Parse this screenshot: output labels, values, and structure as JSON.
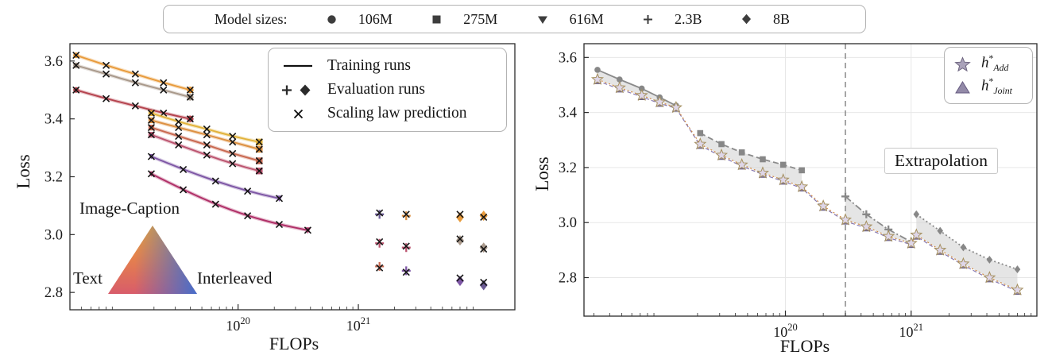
{
  "page": {
    "background": "#ffffff"
  },
  "model_size_legend": {
    "label": "Model sizes:",
    "items": [
      {
        "icon": "circle-marker",
        "label": "106M"
      },
      {
        "icon": "square-marker",
        "label": "275M"
      },
      {
        "icon": "triangle-down-marker",
        "label": "616M"
      },
      {
        "icon": "plus-marker",
        "label": "2.3B"
      },
      {
        "icon": "diamond-marker",
        "label": "8B"
      }
    ]
  },
  "chart_data": [
    {
      "type": "line",
      "panel": "left",
      "title": "",
      "xlabel": "FLOPs",
      "ylabel": "Loss",
      "xscale": "log",
      "xlim": [
        4e+18,
        2e+22
      ],
      "ylim": [
        2.74,
        3.66
      ],
      "yticks": [
        2.8,
        3.0,
        3.2,
        3.4,
        3.6
      ],
      "xticks": [
        1e+20,
        1e+21
      ],
      "xtick_labels": [
        "10²⁰",
        "10²¹"
      ],
      "grid": false,
      "legend": [
        {
          "icon": "line",
          "label": "Training runs"
        },
        {
          "icon": "plus-diamond",
          "label": "Evaluation runs"
        },
        {
          "icon": "x",
          "label": "Scaling law prediction"
        }
      ],
      "annotations": {
        "mixture_triangle": {
          "top_label": "Image-Caption",
          "left_label": "Text",
          "right_label": "Interleaved",
          "colors": {
            "top": "#F0A233",
            "left": "#D85C6A",
            "right": "#3E6FD0"
          }
        }
      },
      "training_runs": [
        {
          "model_size": "106M",
          "color": "#E89B3C",
          "x": [
            4.5e+18,
            8e+18,
            1.4e+19,
            2.4e+19,
            4e+19
          ],
          "y": [
            3.62,
            3.585,
            3.555,
            3.525,
            3.5
          ]
        },
        {
          "model_size": "106M",
          "color": "#A9998B",
          "x": [
            4.5e+18,
            8e+18,
            1.4e+19,
            2.4e+19,
            4e+19
          ],
          "y": [
            3.585,
            3.555,
            3.525,
            3.5,
            3.475
          ]
        },
        {
          "model_size": "106M",
          "color": "#B5434E",
          "x": [
            4.5e+18,
            8e+18,
            1.4e+19,
            2.4e+19,
            4e+19
          ],
          "y": [
            3.5,
            3.47,
            3.445,
            3.42,
            3.4
          ]
        },
        {
          "model_size": "275M",
          "color": "#E2B33C",
          "x": [
            1.9e+19,
            3.2e+19,
            5.5e+19,
            9e+19,
            1.5e+20
          ],
          "y": [
            3.42,
            3.39,
            3.365,
            3.34,
            3.32
          ]
        },
        {
          "model_size": "275M",
          "color": "#DD9143",
          "x": [
            1.9e+19,
            3.2e+19,
            5.5e+19,
            9e+19,
            1.5e+20
          ],
          "y": [
            3.395,
            3.37,
            3.345,
            3.32,
            3.295
          ]
        },
        {
          "model_size": "275M",
          "color": "#C96A52",
          "x": [
            1.9e+19,
            3.2e+19,
            5.5e+19,
            9e+19,
            1.5e+20
          ],
          "y": [
            3.37,
            3.34,
            3.31,
            3.28,
            3.255
          ]
        },
        {
          "model_size": "275M",
          "color": "#BC5570",
          "x": [
            1.9e+19,
            3.2e+19,
            5.5e+19,
            9e+19,
            1.5e+20
          ],
          "y": [
            3.345,
            3.31,
            3.275,
            3.245,
            3.22
          ]
        },
        {
          "model_size": "616M",
          "color": "#7E57A5",
          "x": [
            1.9e+19,
            3.5e+19,
            6.5e+19,
            1.2e+20,
            2.2e+20
          ],
          "y": [
            3.27,
            3.225,
            3.185,
            3.15,
            3.125
          ]
        },
        {
          "model_size": "616M",
          "color": "#B03068",
          "x": [
            1.9e+19,
            3.5e+19,
            6.5e+19,
            1.2e+20,
            2.2e+20,
            3.8e+20
          ],
          "y": [
            3.21,
            3.155,
            3.105,
            3.065,
            3.035,
            3.015
          ]
        }
      ],
      "evaluation_points": [
        {
          "x": 1.5e+21,
          "y": 3.07,
          "marker": "plus",
          "color": "#6B5B95"
        },
        {
          "x": 1.5e+21,
          "y": 2.97,
          "marker": "plus",
          "color": "#BC5570"
        },
        {
          "x": 1.5e+21,
          "y": 2.89,
          "marker": "plus",
          "color": "#C96A52"
        },
        {
          "x": 2.5e+21,
          "y": 3.065,
          "marker": "plus",
          "color": "#DD9143"
        },
        {
          "x": 2.5e+21,
          "y": 2.955,
          "marker": "plus",
          "color": "#BC5570"
        },
        {
          "x": 2.5e+21,
          "y": 2.875,
          "marker": "plus",
          "color": "#7E57A5"
        },
        {
          "x": 7e+21,
          "y": 3.06,
          "marker": "diamond",
          "color": "#E89B3C"
        },
        {
          "x": 7e+21,
          "y": 2.98,
          "marker": "diamond",
          "color": "#A9998B"
        },
        {
          "x": 7e+21,
          "y": 2.84,
          "marker": "diamond",
          "color": "#7E57A5"
        },
        {
          "x": 1.1e+22,
          "y": 3.065,
          "marker": "diamond",
          "color": "#E89B3C"
        },
        {
          "x": 1.1e+22,
          "y": 2.955,
          "marker": "diamond",
          "color": "#A9998B"
        },
        {
          "x": 1.1e+22,
          "y": 2.825,
          "marker": "diamond",
          "color": "#6B5B95"
        }
      ],
      "prediction_marks": [
        {
          "x": 1.5e+21,
          "y": 3.075
        },
        {
          "x": 1.5e+21,
          "y": 2.975
        },
        {
          "x": 1.5e+21,
          "y": 2.885
        },
        {
          "x": 2.5e+21,
          "y": 3.07
        },
        {
          "x": 2.5e+21,
          "y": 2.96
        },
        {
          "x": 2.5e+21,
          "y": 2.87
        },
        {
          "x": 7e+21,
          "y": 3.07
        },
        {
          "x": 7e+21,
          "y": 2.985
        },
        {
          "x": 7e+21,
          "y": 2.85
        },
        {
          "x": 1.1e+22,
          "y": 3.06
        },
        {
          "x": 1.1e+22,
          "y": 2.95
        },
        {
          "x": 1.1e+22,
          "y": 2.835
        }
      ]
    },
    {
      "type": "line",
      "panel": "right",
      "title": "",
      "xlabel": "FLOPs",
      "ylabel": "Loss",
      "xscale": "log",
      "xlim": [
        2.5e+18,
        1e+22
      ],
      "ylim": [
        2.66,
        3.65
      ],
      "yticks": [
        2.8,
        3.0,
        3.2,
        3.4,
        3.6
      ],
      "xticks": [
        1e+20,
        1e+21
      ],
      "xtick_labels": [
        "10²⁰",
        "10²¹"
      ],
      "grid": true,
      "legend": [
        {
          "icon": "star",
          "base": "h",
          "sup": "*",
          "sub": "Add"
        },
        {
          "icon": "triangle-up",
          "base": "h",
          "sup": "*",
          "sub": "Joint"
        }
      ],
      "annotations": {
        "extrapolation_label": "Extrapolation",
        "boundary_x": 3e+20
      },
      "runs": [
        {
          "model_size": "106M",
          "marker": "circle",
          "linestyle": "solid",
          "x": [
            3.2e+18,
            4.8e+18,
            7.2e+18,
            1e+19,
            1.35e+19
          ],
          "y": [
            3.555,
            3.52,
            3.487,
            3.455,
            3.425
          ]
        },
        {
          "model_size": "275M",
          "marker": "square",
          "linestyle": "dashed",
          "x": [
            2.1e+19,
            3.1e+19,
            4.5e+19,
            6.6e+19,
            9.6e+19,
            1.35e+20
          ],
          "y": [
            3.325,
            3.285,
            3.255,
            3.23,
            3.21,
            3.19
          ]
        },
        {
          "model_size": "2.3B",
          "marker": "plus",
          "linestyle": "dashdot",
          "x": [
            3e+20,
            4.4e+20,
            6.6e+20,
            1e+21
          ],
          "y": [
            3.095,
            3.03,
            2.975,
            2.93
          ]
        },
        {
          "model_size": "8B",
          "marker": "diamond",
          "linestyle": "dotted",
          "x": [
            1.1e+21,
            1.7e+21,
            2.6e+21,
            4.2e+21,
            7e+21
          ],
          "y": [
            3.03,
            2.97,
            2.91,
            2.865,
            2.83
          ]
        }
      ],
      "predictions": {
        "x": [
          3.2e+18,
          4.8e+18,
          7.2e+18,
          1e+19,
          1.35e+19,
          2.1e+19,
          3.1e+19,
          4.5e+19,
          6.6e+19,
          9.6e+19,
          1.35e+20,
          2e+20,
          3e+20,
          4.4e+20,
          6.6e+20,
          1e+21,
          1.1e+21,
          1.7e+21,
          2.6e+21,
          4.2e+21,
          7e+21
        ],
        "h_add": [
          3.52,
          3.49,
          3.462,
          3.438,
          3.418,
          3.285,
          3.245,
          3.21,
          3.18,
          3.155,
          3.13,
          3.06,
          3.01,
          2.985,
          2.95,
          2.925,
          2.955,
          2.9,
          2.85,
          2.8,
          2.755
        ],
        "h_joint": [
          3.515,
          3.485,
          3.457,
          3.433,
          3.415,
          3.28,
          3.24,
          3.205,
          3.175,
          3.15,
          3.125,
          3.055,
          3.005,
          2.98,
          2.945,
          2.92,
          2.95,
          2.895,
          2.845,
          2.795,
          2.75
        ]
      }
    }
  ]
}
